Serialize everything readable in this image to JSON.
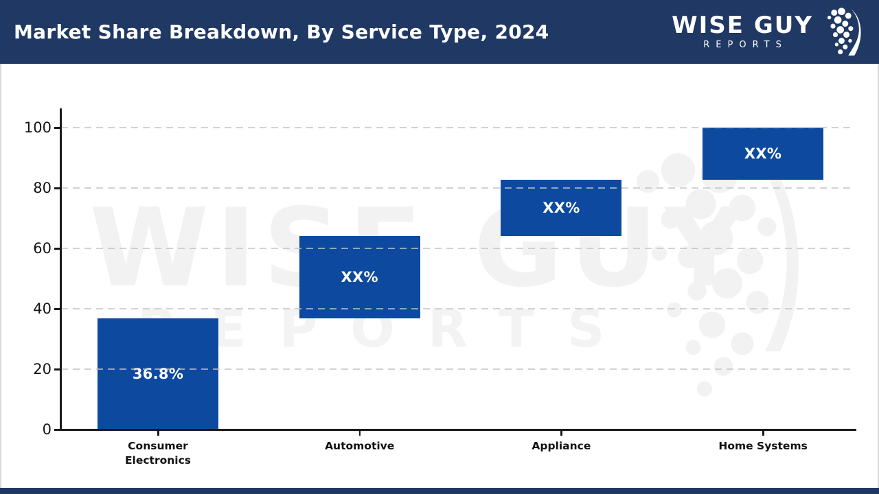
{
  "header": {
    "title": "Market Share Breakdown, By Service Type, 2024",
    "logo": {
      "wordmark": "WISE GUY",
      "subtitle": "REPORTS"
    }
  },
  "watermark": {
    "line1": "WISE GUY",
    "line2": "REPORTS"
  },
  "chart_data": {
    "type": "bar",
    "subtype": "floating-stacked-percentage",
    "title": "Market Share Breakdown, By Service Type, 2024",
    "categories": [
      "Consumer Electronics",
      "Automotive",
      "Appliance",
      "Home Systems"
    ],
    "series": [
      {
        "name": "Consumer Electronics",
        "from": 0,
        "to": 36.8,
        "label": "36.8%"
      },
      {
        "name": "Automotive",
        "from": 36.8,
        "to": 64.1,
        "label": "XX%"
      },
      {
        "name": "Appliance",
        "from": 64.1,
        "to": 82.8,
        "label": "XX%"
      },
      {
        "name": "Home Systems",
        "from": 82.8,
        "to": 100,
        "label": "XX%"
      }
    ],
    "xlabel": "",
    "ylabel": "",
    "ylim": [
      0,
      100
    ],
    "yticks": [
      0,
      20,
      40,
      60,
      80,
      100
    ],
    "grid": "horizontal-dashed-over-bars",
    "legend": "none",
    "bar_color": "#0d4a9f",
    "bar_label_color": "#ffffff"
  },
  "colors": {
    "header_bg": "#1f3864",
    "footer_bg": "#1f3864",
    "bar": "#0d4a9f",
    "gridline": "#cccccc",
    "axis": "#1a1a1a",
    "watermark": "#f2f2f2"
  }
}
